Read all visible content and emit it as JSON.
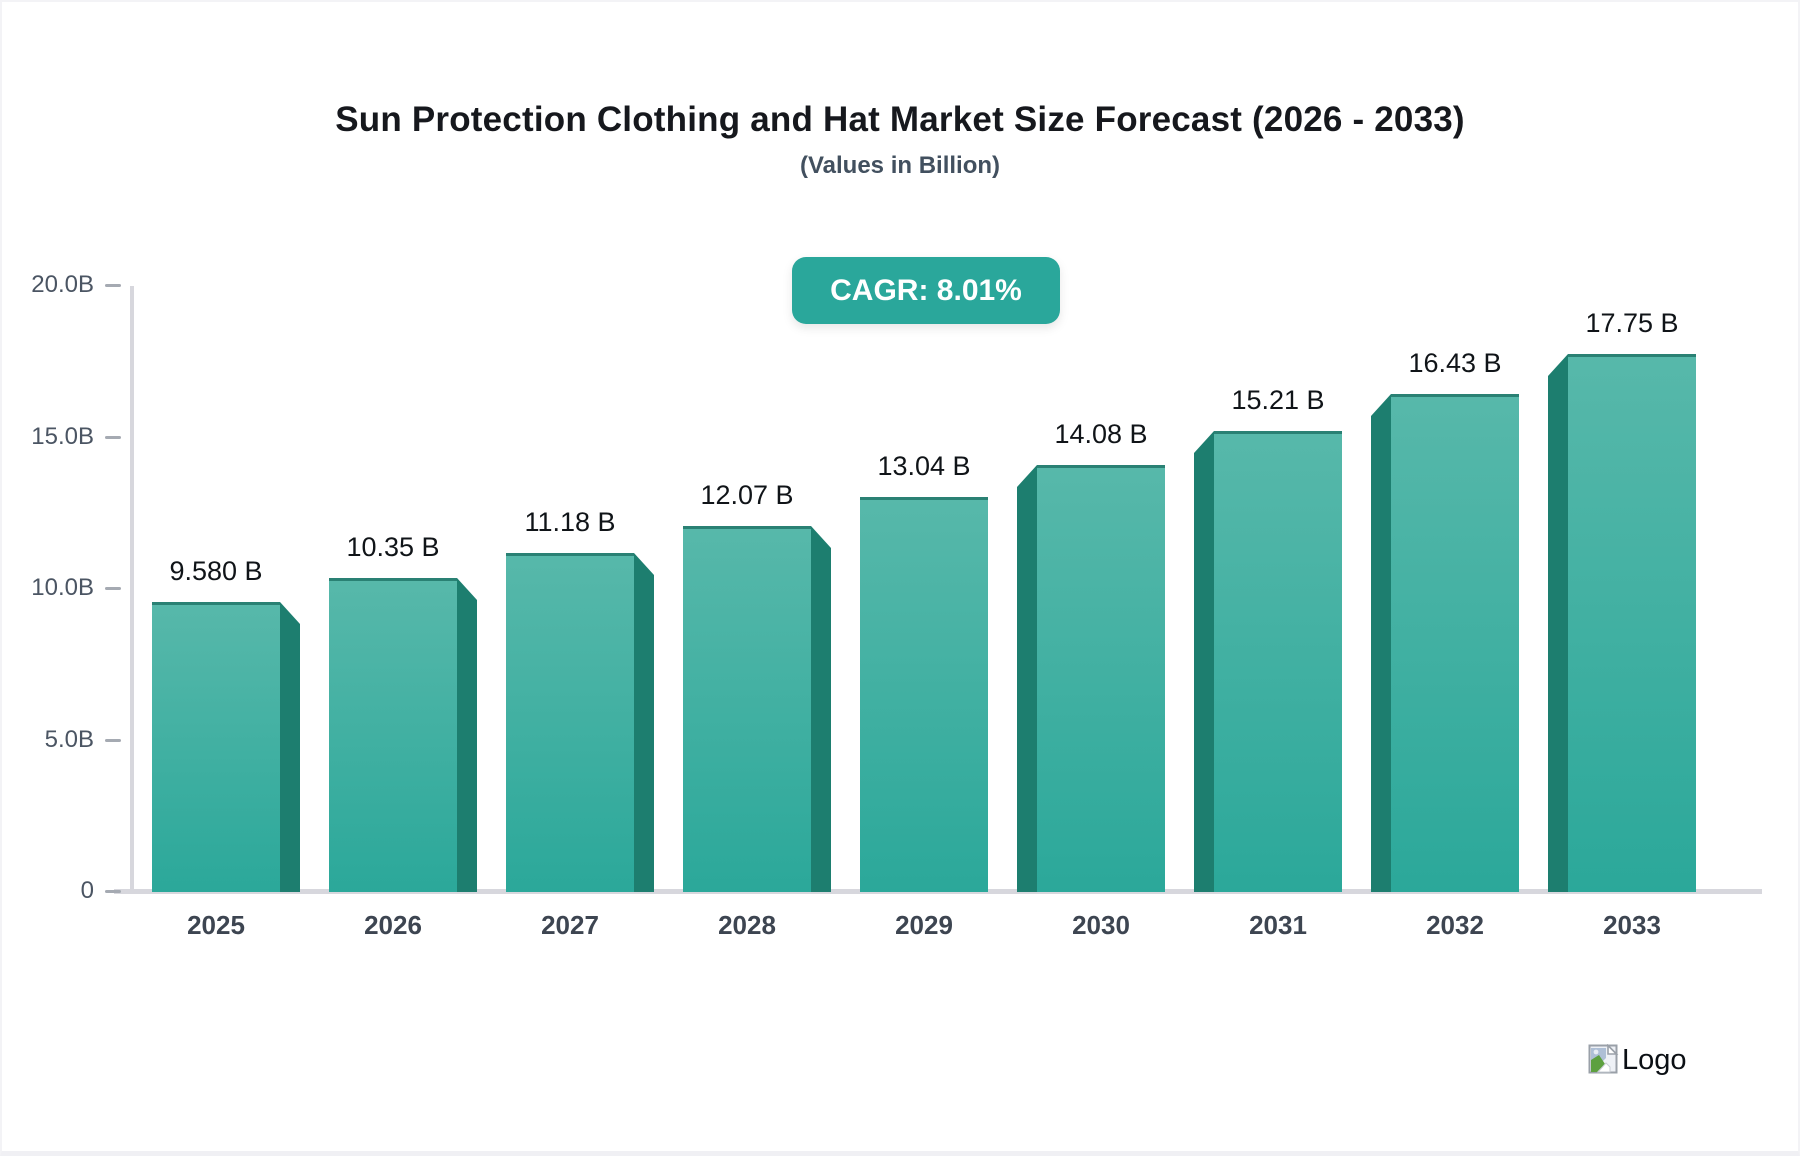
{
  "page": {
    "logo_text": "Logo"
  },
  "chart_data": {
    "type": "bar",
    "title": "Sun Protection Clothing and Hat Market Size Forecast (2026 - 2033)",
    "subtitle": "(Values in Billion)",
    "badge": "CAGR: 8.01%",
    "categories": [
      "2025",
      "2026",
      "2027",
      "2028",
      "2029",
      "2030",
      "2031",
      "2032",
      "2033"
    ],
    "values": [
      9.58,
      10.35,
      11.18,
      12.07,
      13.04,
      14.08,
      15.21,
      16.43,
      17.75
    ],
    "bar_labels": [
      "9.580 B",
      "10.35 B",
      "11.18 B",
      "12.07 B",
      "13.04 B",
      "14.08 B",
      "15.21 B",
      "16.43 B",
      "17.75 B"
    ],
    "xlabel": "",
    "ylabel": "",
    "ylim": [
      0,
      20
    ],
    "yticks": [
      {
        "label": "20.0B",
        "value": 20
      },
      {
        "label": "15.0B",
        "value": 15
      },
      {
        "label": "10.0B",
        "value": 10
      },
      {
        "label": "5.0B",
        "value": 5
      },
      {
        "label": "0",
        "value": 0
      }
    ],
    "grid": false,
    "legend": false,
    "perspective": "3d-extruded-bars-vanishing-center",
    "colors": {
      "bar_face_top": "#57b8aa",
      "bar_face_bottom": "#2ba89a",
      "bar_side": "#1d7e6f",
      "bar_top_edge": "#2a8174",
      "badge_bg": "#2aa79b",
      "badge_text": "#ffffff",
      "axis_line": "#d7d7dd",
      "tick_dash": "#a5aab2",
      "tick_label": "#4b5563",
      "title": "#16181d",
      "subtitle": "#42505f",
      "value_label": "#101418",
      "year_label": "#3d4551"
    }
  }
}
